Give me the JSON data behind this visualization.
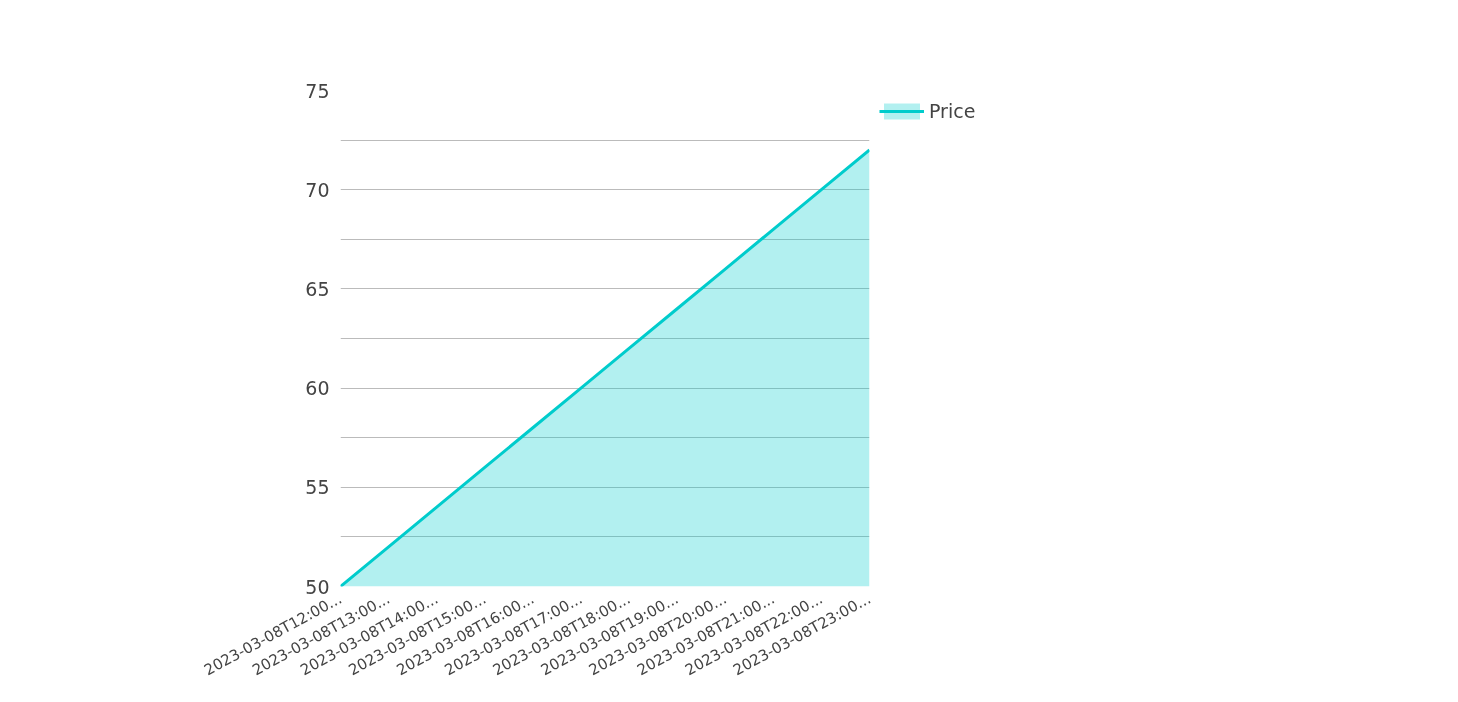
{
  "chart_data": {
    "type": "area",
    "categories": [
      "2023-03-08T12:00...",
      "2023-03-08T13:00...",
      "2023-03-08T14:00...",
      "2023-03-08T15:00...",
      "2023-03-08T16:00...",
      "2023-03-08T17:00...",
      "2023-03-08T18:00...",
      "2023-03-08T19:00...",
      "2023-03-08T20:00...",
      "2023-03-08T21:00...",
      "2023-03-08T22:00...",
      "2023-03-08T23:00..."
    ],
    "series": [
      {
        "name": "Price",
        "color": "#00cccc",
        "values": [
          50,
          52,
          54,
          56,
          58,
          60,
          62,
          64,
          66,
          68,
          70,
          72
        ]
      }
    ],
    "ylim": [
      50,
      75
    ],
    "yticks": [
      50,
      {
        "value": 52.5,
        "label": null
      },
      55,
      {
        "value": 57.5,
        "label": null
      },
      60,
      {
        "value": 62.5,
        "label": null
      },
      65,
      {
        "value": 67.5,
        "label": null
      },
      70,
      {
        "value": 72.5,
        "label": null
      },
      75
    ],
    "grid": "y",
    "legend": "top right"
  }
}
